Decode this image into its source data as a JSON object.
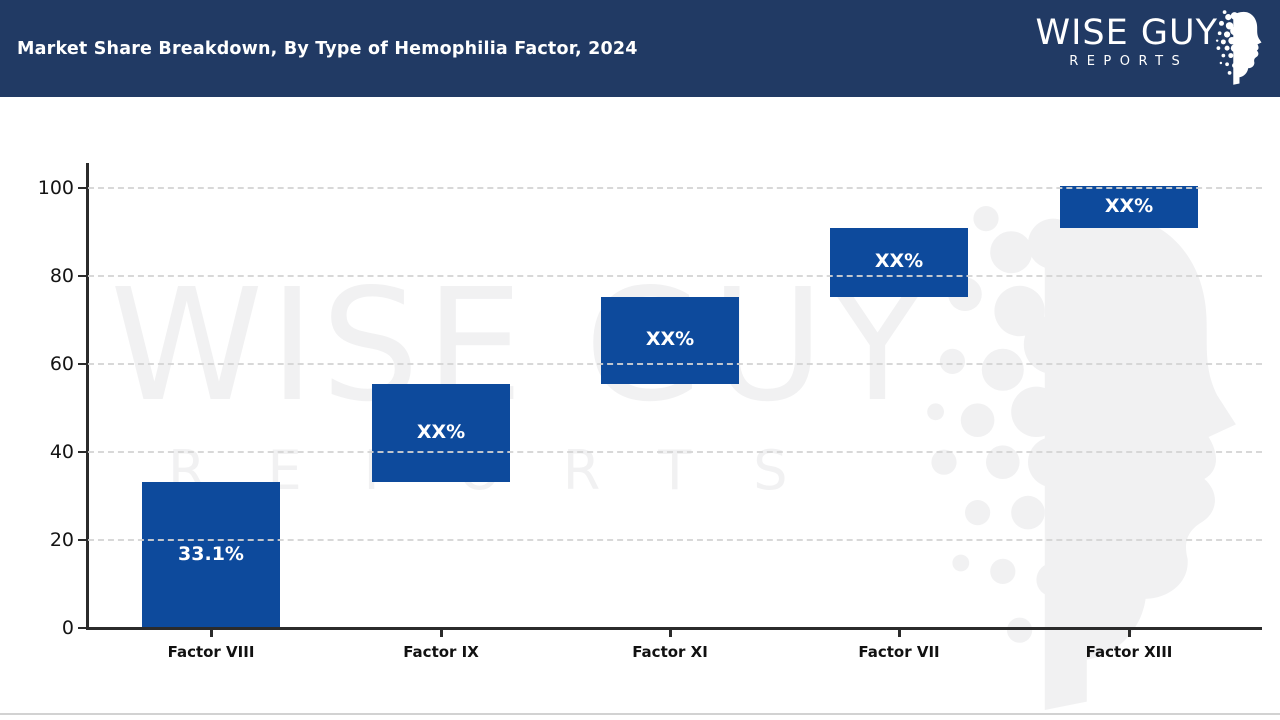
{
  "header": {
    "title": "Market Share Breakdown, By Type of Hemophilia Factor, 2024",
    "bg_color": "#213a64",
    "logo": {
      "line1": "WISE GUY",
      "line2": "REPORTS",
      "head_icon": "dotted-profile-head"
    }
  },
  "watermark": {
    "line1": "WISE GUY",
    "line2": "REPORTS",
    "head_icon": "dotted-profile-head"
  },
  "chart_data": {
    "type": "bar",
    "variant": "waterfall",
    "title": "Market Share Breakdown, By Type of Hemophilia Factor, 2024",
    "categories": [
      "Factor VIII",
      "Factor IX",
      "Factor XI",
      "Factor VII",
      "Factor XIII"
    ],
    "segments": [
      {
        "category": "Factor VIII",
        "start": 0,
        "end": 33.1,
        "label": "33.1%"
      },
      {
        "category": "Factor IX",
        "start": 33.1,
        "end": 55.3,
        "label": "XX%"
      },
      {
        "category": "Factor XI",
        "start": 55.3,
        "end": 75.2,
        "label": "XX%"
      },
      {
        "category": "Factor VII",
        "start": 75.2,
        "end": 90.8,
        "label": "XX%"
      },
      {
        "category": "Factor XIII",
        "start": 90.8,
        "end": 100.4,
        "label": "XX%"
      }
    ],
    "xlabel": "",
    "ylabel": "",
    "yticks": [
      0,
      20,
      40,
      60,
      80,
      100
    ],
    "ylim": [
      0,
      106
    ],
    "grid": {
      "horizontal": true,
      "style": "dashed",
      "drawn_over_bars": true
    },
    "legend": "none",
    "colors": {
      "bar": "#0d4a9c",
      "bar_label": "#ffffff",
      "grid": "#d4d4d4",
      "axis": "#2b2b2b",
      "tick_label": "#141414",
      "header_bg": "#213a64",
      "watermark": "#f1f1f2"
    }
  }
}
